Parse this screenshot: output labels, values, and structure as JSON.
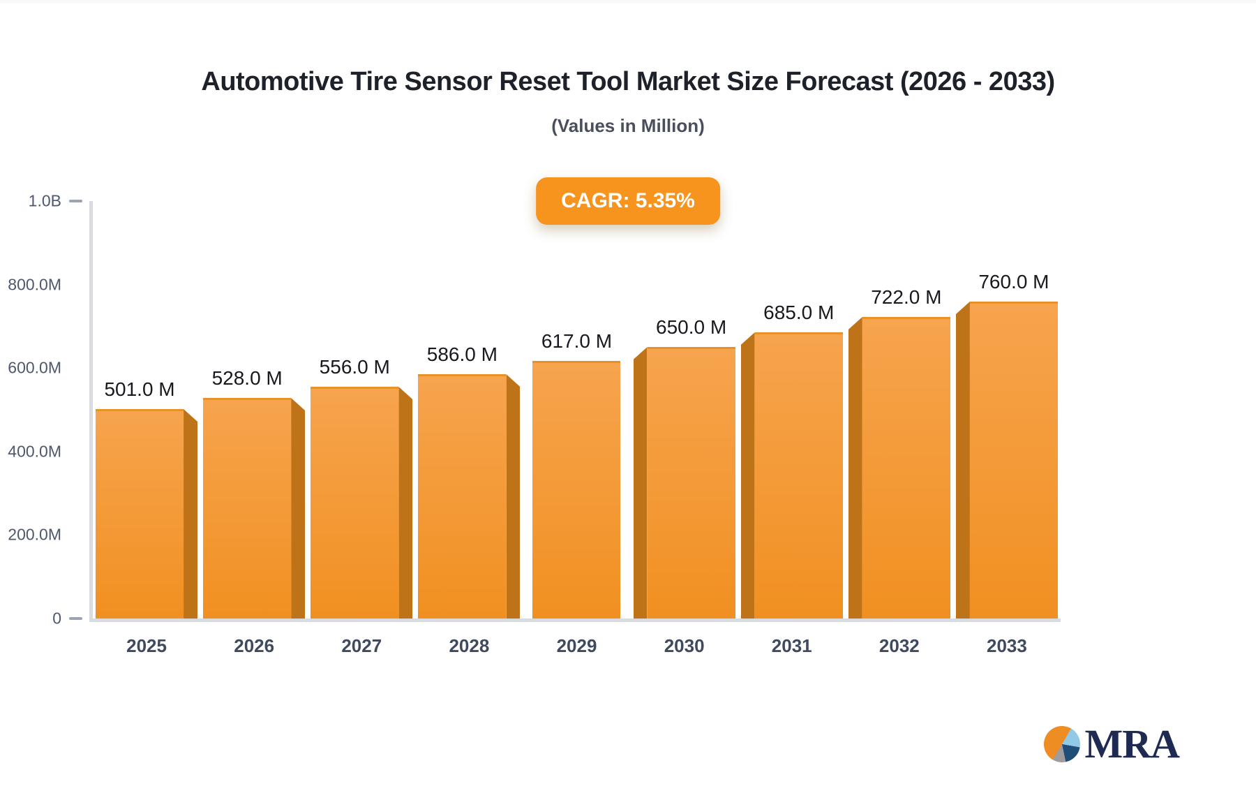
{
  "header": {
    "title": "Automotive Tire Sensor Reset Tool Market Size Forecast (2026 - 2033)",
    "subtitle": "(Values in Million)"
  },
  "badge": {
    "label": "CAGR: 5.35%",
    "background_color": "#f7941e",
    "text_color": "#ffffff"
  },
  "chart_data": {
    "type": "bar",
    "title": "Automotive Tire Sensor Reset Tool Market Size Forecast (2026 - 2033)",
    "subtitle": "(Values in Million)",
    "unit": "Million USD",
    "categories": [
      "2025",
      "2026",
      "2027",
      "2028",
      "2029",
      "2030",
      "2031",
      "2032",
      "2033"
    ],
    "values": [
      501,
      528,
      556,
      586,
      617,
      650,
      685,
      722,
      760
    ],
    "bar_labels": [
      "501.0 M",
      "528.0 M",
      "556.0 M",
      "586.0 M",
      "617.0 M",
      "650.0 M",
      "685.0 M",
      "722.0 M",
      "760.0 M"
    ],
    "ylim": [
      0,
      1000
    ],
    "y_ticks": [
      {
        "label": "1.0B",
        "value": 1000,
        "dash": true
      },
      {
        "label": "800.0M",
        "value": 800,
        "dash": false
      },
      {
        "label": "600.0M",
        "value": 600,
        "dash": false
      },
      {
        "label": "400.0M",
        "value": 400,
        "dash": false
      },
      {
        "label": "200.0M",
        "value": 200,
        "dash": false
      },
      {
        "label": "0",
        "value": 0,
        "dash": true
      }
    ],
    "grid": false,
    "legend": null,
    "bar_color_top": "#f6a44e",
    "bar_color_bottom": "#f19021",
    "bar_side_color": "#bf7318",
    "axis_line_color": "#d9dbdf"
  },
  "logo": {
    "text": "MRA",
    "pie_colors": {
      "orange": "#ee8d22",
      "light_blue": "#92c9e4",
      "navy": "#1f4e79",
      "gray": "#a09c9c"
    },
    "text_color": "#1e2a52"
  }
}
